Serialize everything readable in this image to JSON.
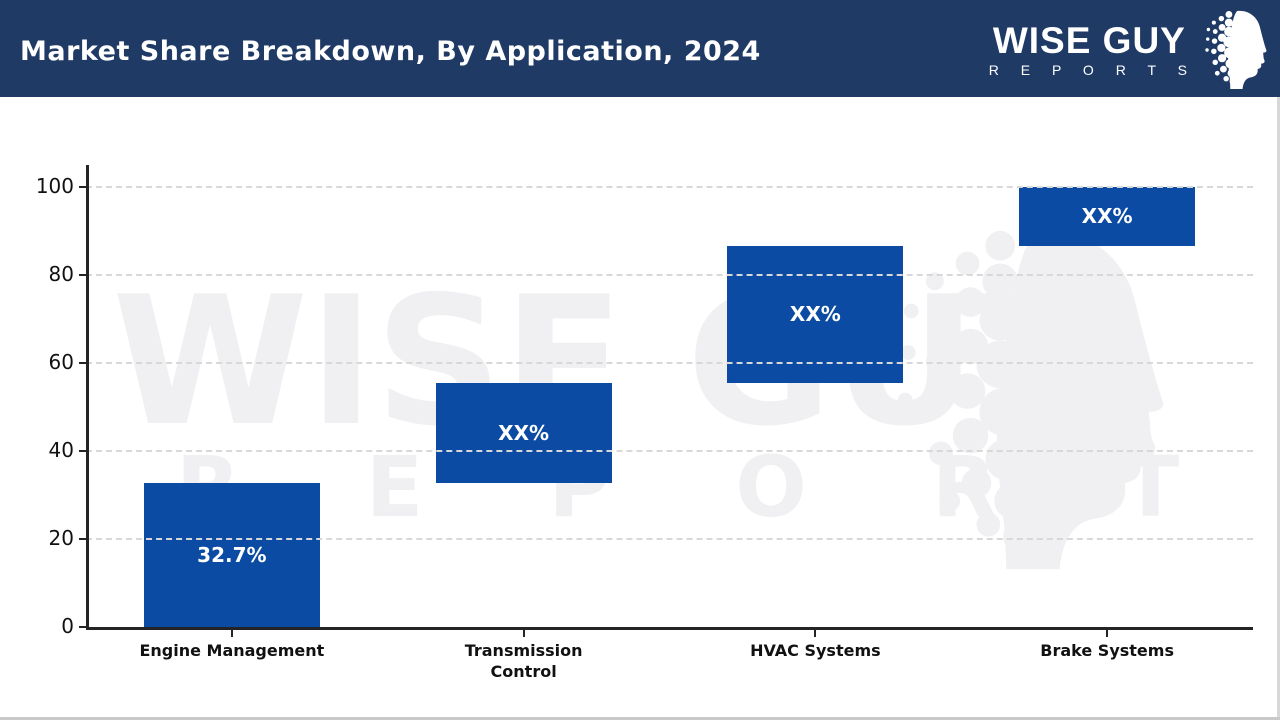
{
  "header": {
    "title": "Market Share Breakdown, By Application, 2024",
    "logo": {
      "line1": "WISE GUY",
      "line2": "R E P O R T S"
    }
  },
  "watermark": {
    "line1": "WISE GUY",
    "line2": "R E P O R T S"
  },
  "chart_data": {
    "type": "bar",
    "subtype": "waterfall",
    "title": "Market Share Breakdown, By Application, 2024",
    "categories": [
      "Engine Management",
      "Transmission Control",
      "HVAC Systems",
      "Brake Systems"
    ],
    "tick_label_lines": [
      [
        "Engine Management"
      ],
      [
        "Transmission",
        "Control"
      ],
      [
        "HVAC Systems"
      ],
      [
        "Brake Systems"
      ]
    ],
    "series": [
      {
        "name": "Market Share",
        "segments": [
          {
            "category": "Engine Management",
            "start": 0,
            "end": 32.7,
            "label": "32.7%"
          },
          {
            "category": "Transmission Control",
            "start": 32.7,
            "end": 55.4,
            "label": "XX%"
          },
          {
            "category": "HVAC Systems",
            "start": 55.4,
            "end": 86.7,
            "label": "XX%"
          },
          {
            "category": "Brake Systems",
            "start": 86.7,
            "end": 100,
            "label": "XX%"
          }
        ]
      }
    ],
    "xlabel": "",
    "ylabel": "",
    "ylim": [
      0,
      100
    ],
    "yticks": [
      0,
      20,
      40,
      60,
      80,
      100
    ],
    "grid": "horizontal-dashed",
    "legend": "none",
    "colors": {
      "bar": "#0b4ba3",
      "bar_label": "#ffffff",
      "grid": "#d8d8d8",
      "axis": "#242424",
      "tick_text": "#111111",
      "header_bg": "#203a66",
      "header_text": "#ffffff",
      "watermark": "#f0f0f3"
    }
  }
}
